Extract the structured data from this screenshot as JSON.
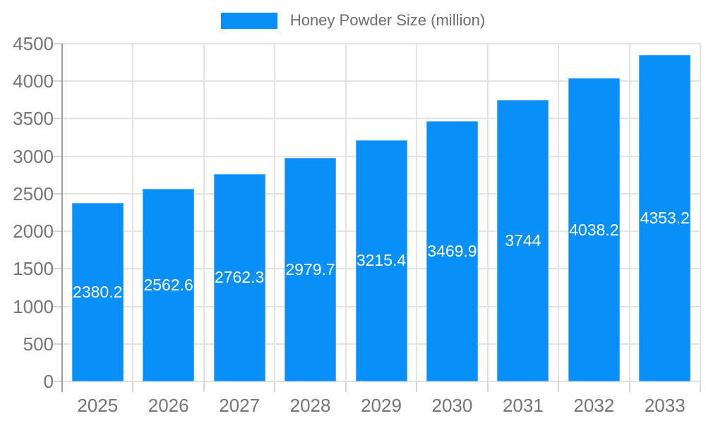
{
  "legend": {
    "label": "Honey Powder Size (million)"
  },
  "chart_data": {
    "type": "bar",
    "title": "Honey Powder Size (million)",
    "categories": [
      "2025",
      "2026",
      "2027",
      "2028",
      "2029",
      "2030",
      "2031",
      "2032",
      "2033"
    ],
    "values": [
      2380.2,
      2562.6,
      2762.3,
      2979.7,
      3215.4,
      3469.9,
      3744,
      4038.2,
      4353.2
    ],
    "bar_labels": [
      "2380.2",
      "2562.6",
      "2762.3",
      "2979.7",
      "3215.4",
      "3469.9",
      "3744",
      "4038.2",
      "4353.2"
    ],
    "xlabel": "",
    "ylabel": "",
    "ylim": [
      0,
      4500
    ],
    "ytick_step": 500,
    "grid": true,
    "legend_position": "top"
  },
  "colors": {
    "bar": "#0990f8",
    "bar_border": "#56aef9",
    "bar_label": "#ffffff",
    "grid": "#e3e3e3",
    "axis_line": "#9e9e9e",
    "tick": "#d4d4d4",
    "axis_text": "#757575",
    "legend_text": "#6e6e6e",
    "background": "#ffffff"
  }
}
